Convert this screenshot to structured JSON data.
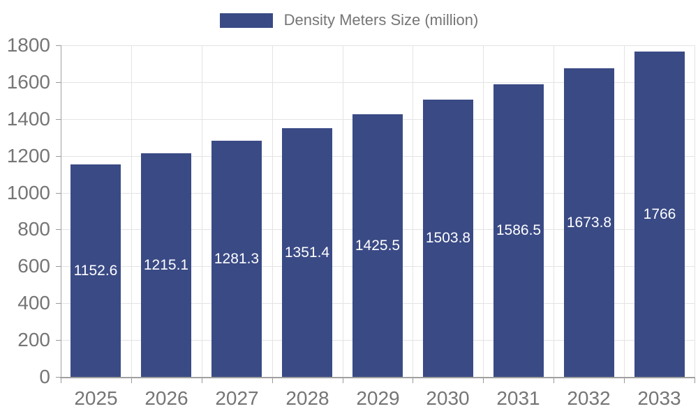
{
  "chart_data": {
    "type": "bar",
    "title": "Density Meters Size (million)",
    "categories": [
      "2025",
      "2026",
      "2027",
      "2028",
      "2029",
      "2030",
      "2031",
      "2032",
      "2033"
    ],
    "values": [
      1152.6,
      1215.1,
      1281.3,
      1351.4,
      1425.5,
      1503.8,
      1586.5,
      1673.8,
      1766
    ],
    "xlabel": "",
    "ylabel": "",
    "ylim": [
      0,
      1800
    ],
    "ytick_step": 200,
    "yticks": [
      0,
      200,
      400,
      600,
      800,
      1000,
      1200,
      1400,
      1600,
      1800
    ],
    "legend_position": "top-center",
    "grid": "horizontal-and-vertical",
    "value_label_position": "inside-center",
    "colors": {
      "bar": "#3A4A85",
      "grid_line": "#e3e3e3",
      "axis_line": "#a0a0a0",
      "tick_mark": "#999999",
      "tick_label": "#757575",
      "legend_text": "#757575",
      "value_label": "#ffffff",
      "background": "#ffffff"
    }
  }
}
